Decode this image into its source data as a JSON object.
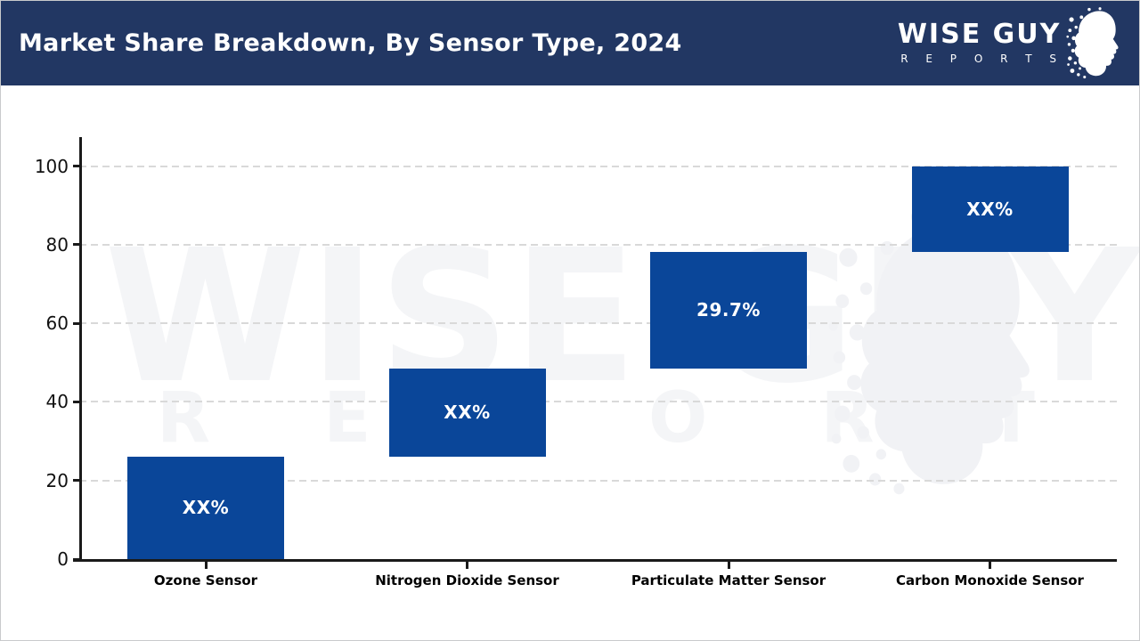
{
  "header": {
    "title": "Market Share Breakdown, By Sensor Type, 2024",
    "logo": {
      "wordmark": "WISE GUY",
      "sub": "R E P O R T S"
    }
  },
  "watermark": {
    "wordmark": "WISE GUY",
    "sub": "R E P O R T S"
  },
  "chart_data": {
    "type": "bar",
    "subtype": "floating-waterfall",
    "title": "Market Share Breakdown, By Sensor Type, 2024",
    "xlabel": "",
    "ylabel": "",
    "ylim": [
      0,
      107
    ],
    "yticks": [
      0,
      20,
      40,
      60,
      80,
      100
    ],
    "grid": "horizontal-dashed",
    "legend_position": "none",
    "categories": [
      "Ozone Sensor",
      "Nitrogen Dioxide Sensor",
      "Particulate Matter Sensor",
      "Carbon Monoxide Sensor"
    ],
    "bars": [
      {
        "category": "Ozone Sensor",
        "start": 0,
        "end": 26.1,
        "value": 26.1,
        "label": "XX%"
      },
      {
        "category": "Nitrogen Dioxide Sensor",
        "start": 26.1,
        "end": 48.5,
        "value": 22.4,
        "label": "XX%"
      },
      {
        "category": "Particulate Matter Sensor",
        "start": 48.5,
        "end": 78.2,
        "value": 29.7,
        "label": "29.7%"
      },
      {
        "category": "Carbon Monoxide Sensor",
        "start": 78.2,
        "end": 100,
        "value": 21.8,
        "label": "XX%"
      }
    ],
    "colors": {
      "header_bg": "#223763",
      "bar": "#0a4699",
      "bar_label": "#ffffff",
      "grid": "#d9d9d9",
      "axis": "#1a1a1a",
      "watermark": "#f4f5f7"
    }
  }
}
